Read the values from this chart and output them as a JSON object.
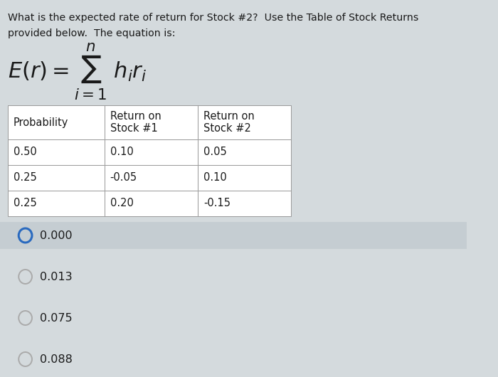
{
  "question_line1": "What is the expected rate of return for Stock #2?  Use the Table of Stock Returns",
  "question_line2": "provided below.  The equation is:",
  "table_headers": [
    "Probability",
    "Return on\nStock #1",
    "Return on\nStock #2"
  ],
  "table_data": [
    [
      "0.50",
      "0.10",
      "0.05"
    ],
    [
      "0.25",
      "-0.05",
      "0.10"
    ],
    [
      "0.25",
      "0.20",
      "-0.15"
    ]
  ],
  "choices": [
    "0.000",
    "0.013",
    "0.075",
    "0.088"
  ],
  "selected_choice": 0,
  "bg_color": "#d4dadd",
  "white_color": "#ffffff",
  "text_color": "#1a1a1a",
  "selected_bg": "#c5cdd2",
  "choice_area_bg": "#cacfd2",
  "fig_width": 7.0,
  "fig_height": 5.3
}
